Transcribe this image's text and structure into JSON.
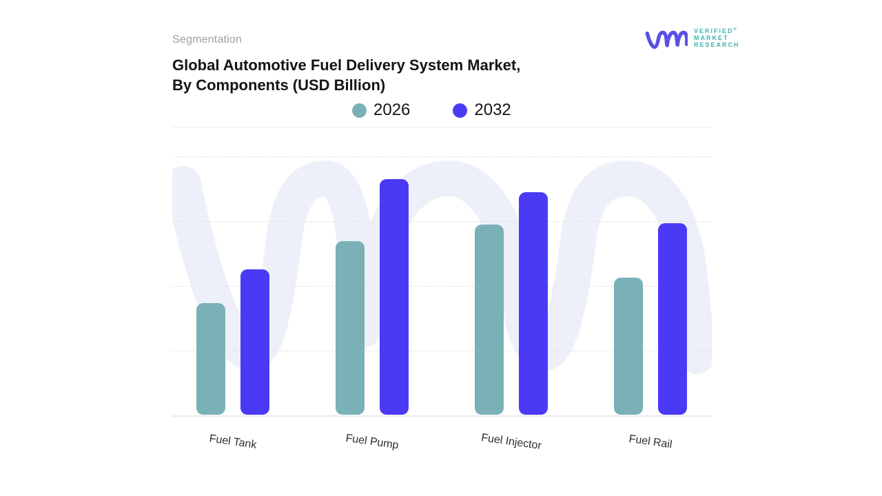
{
  "header": {
    "eyebrow": "Segmentation",
    "title_line1": "Global Automotive Fuel Delivery System Market,",
    "title_line2": "By Components (USD Billion)"
  },
  "brand": {
    "name_lines": [
      "VERIFIED",
      "MARKET",
      "RESEARCH"
    ],
    "registered_symbol": "®",
    "glyph": "vmr-monogram",
    "glyph_color": "#5a4fe6",
    "text_color": "#3fb3ad"
  },
  "chart_data": {
    "type": "bar",
    "title": "Global Automotive Fuel Delivery System Market, By Components (USD Billion)",
    "value_unit": "USD Billion",
    "categories": [
      "Fuel Tank",
      "Fuel Pump",
      "Fuel Injector",
      "Fuel Rail"
    ],
    "series": [
      {
        "name": "2026",
        "color": "#7ab1b6",
        "values": [
          43,
          67,
          73.5,
          53
        ]
      },
      {
        "name": "2032",
        "color": "#4b3af5",
        "values": [
          56,
          91,
          86,
          74
        ]
      }
    ],
    "value_note": "No y-axis tick labels shown; values estimated as percent of the top gridline (top gridline = 100, baseline = 0).",
    "ylim": [
      0,
      100
    ],
    "grid": "horizontal-dashed",
    "gridline_count": 4,
    "legend_position": "top-center",
    "category_label_rotation_deg": 8,
    "watermark": "vmr-monogram",
    "watermark_color": "#eef0f9"
  }
}
